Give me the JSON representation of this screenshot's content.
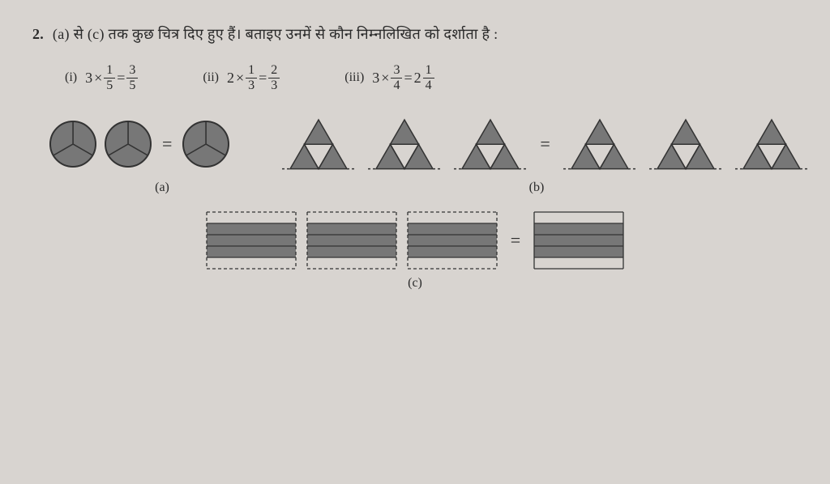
{
  "colors": {
    "page_bg": "#d8d4d0",
    "stroke": "#333333",
    "fill_shaded": "#777777",
    "fill_light": "rgba(0,0,0,0)",
    "dashed": "#555555"
  },
  "question": {
    "number": "2.",
    "text": "(a) से (c) तक कुछ चित्र दिए हुए हैं। बताइए उनमें से कौन निम्नलिखित को दर्शाता है :"
  },
  "equations": [
    {
      "label": "(i)",
      "lhs_mult": "3",
      "lhs_num": "1",
      "lhs_den": "5",
      "rhs_whole": "",
      "rhs_num": "3",
      "rhs_den": "5"
    },
    {
      "label": "(ii)",
      "lhs_mult": "2",
      "lhs_num": "1",
      "lhs_den": "3",
      "rhs_whole": "",
      "rhs_num": "2",
      "rhs_den": "3"
    },
    {
      "label": "(iii)",
      "lhs_mult": "3",
      "lhs_num": "3",
      "lhs_den": "4",
      "rhs_whole": "2",
      "rhs_num": "1",
      "rhs_den": "4"
    }
  ],
  "figures": {
    "a": {
      "caption": "(a)",
      "type": "circles",
      "radius": 28,
      "sectors": 3,
      "left_count": 2,
      "right_count": 1,
      "equals": "="
    },
    "b": {
      "caption": "(b)",
      "type": "triangles",
      "size": 70,
      "sub": 4,
      "left_count": 3,
      "right_count": 3,
      "equals": "="
    },
    "c": {
      "caption": "(c)",
      "type": "rects",
      "w": 110,
      "h": 70,
      "rows": 5,
      "shaded_rows": 3,
      "left_count": 3,
      "right_count": 1,
      "equals": "="
    }
  }
}
